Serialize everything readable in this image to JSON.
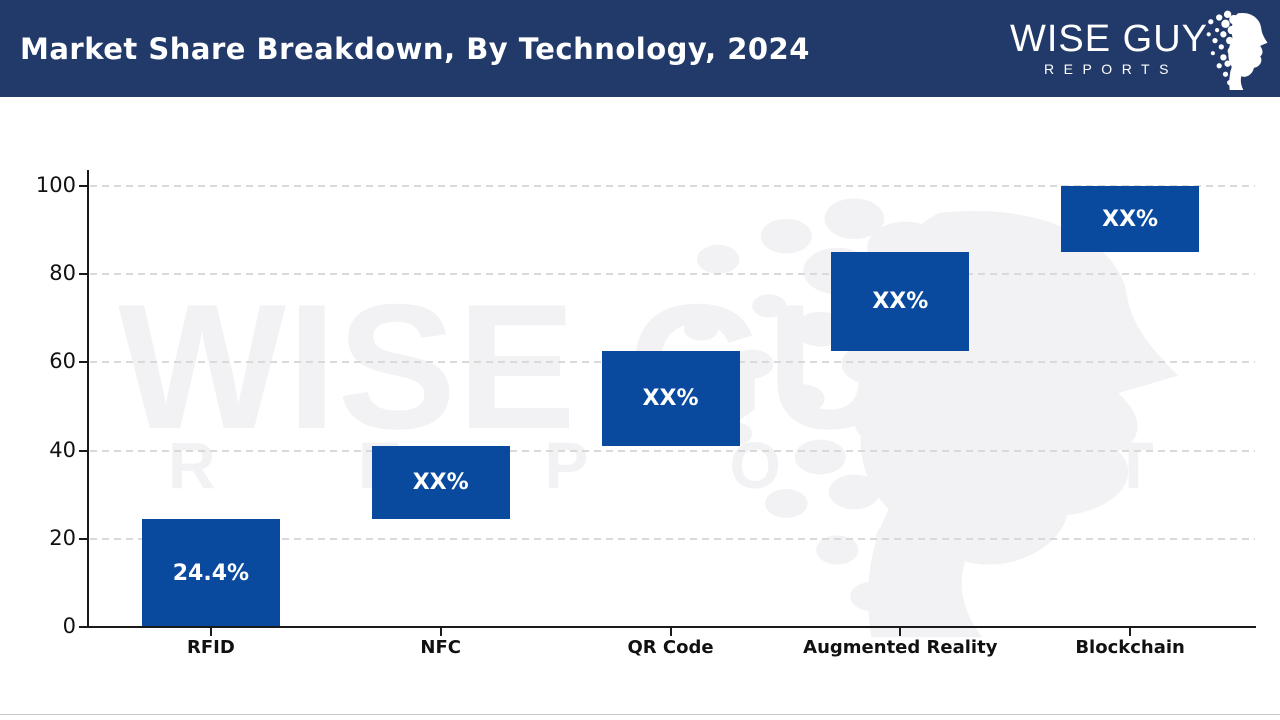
{
  "header": {
    "title": "Market Share Breakdown, By Technology, 2024",
    "logo": {
      "line1": "WISE GUY",
      "line2": "REPORTS"
    }
  },
  "watermark": {
    "line1": "WISE GUY",
    "line2": "R E P O R T S"
  },
  "chart_data": {
    "type": "bar",
    "variant": "waterfall",
    "title": "Market Share Breakdown, By Technology, 2024",
    "categories": [
      "RFID",
      "NFC",
      "QR Code",
      "Augmented Reality",
      "Blockchain"
    ],
    "series": [
      {
        "name": "Market share (%)",
        "segments": [
          {
            "category": "RFID",
            "start": 0,
            "end": 24.4,
            "label": "24.4%"
          },
          {
            "category": "NFC",
            "start": 24.4,
            "end": 41,
            "label": "XX%"
          },
          {
            "category": "QR Code",
            "start": 41,
            "end": 62.5,
            "label": "XX%"
          },
          {
            "category": "Augmented Reality",
            "start": 62.5,
            "end": 85,
            "label": "XX%"
          },
          {
            "category": "Blockchain",
            "start": 85,
            "end": 100,
            "label": "XX%"
          }
        ]
      }
    ],
    "xlabel": "",
    "ylabel": "",
    "ylim": [
      0,
      100
    ],
    "yticks": [
      0,
      20,
      40,
      60,
      80,
      100
    ],
    "grid": "horizontal-dashed",
    "legend_position": "none"
  },
  "colors": {
    "header_bg": "#213a6a",
    "title_text": "#ffffff",
    "bar": "#0a4a9e",
    "bar_label": "#ffffff",
    "grid": "#d9d9d9",
    "axis": "#1a1a1a",
    "watermark": "#f2f2f4",
    "bottom_rule": "#c9c9c9"
  }
}
